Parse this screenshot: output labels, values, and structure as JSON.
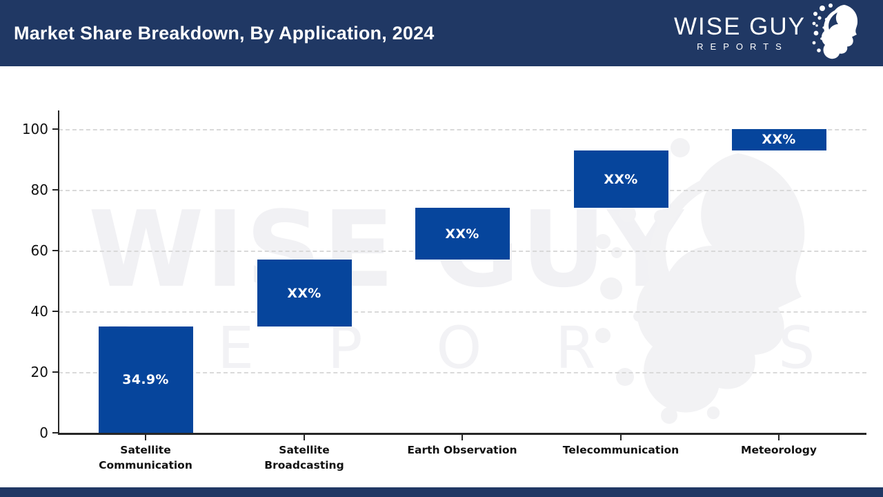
{
  "header": {
    "title": "Market Share Breakdown, By Application, 2024",
    "bg_color": "#203864",
    "logo": {
      "line1": "WISE GUY",
      "line2": "REPORTS"
    }
  },
  "watermark": {
    "line1": "WISE GUY",
    "line2": "R E P O R T S"
  },
  "chart_data": {
    "type": "bar",
    "subtype": "waterfall",
    "title": "Market Share Breakdown, By Application, 2024",
    "xlabel": "",
    "ylabel": "",
    "ylim": [
      0,
      100
    ],
    "y_ticks": [
      0,
      20,
      40,
      60,
      80,
      100
    ],
    "grid": "horizontal-dashed",
    "legend": "none",
    "bar_color": "#06459C",
    "categories": [
      "Satellite\nCommunication",
      "Satellite\nBroadcasting",
      "Earth Observation",
      "Telecommunication",
      "Meteorology"
    ],
    "segments": [
      {
        "name": "Satellite Communication",
        "start": 0,
        "end": 34.9,
        "value_label": "34.9%"
      },
      {
        "name": "Satellite Broadcasting",
        "start": 34.9,
        "end": 57,
        "value_label": "XX%"
      },
      {
        "name": "Earth Observation",
        "start": 57,
        "end": 74,
        "value_label": "XX%"
      },
      {
        "name": "Telecommunication",
        "start": 74,
        "end": 93,
        "value_label": "XX%"
      },
      {
        "name": "Meteorology",
        "start": 93,
        "end": 100,
        "value_label": "XX%"
      }
    ]
  }
}
